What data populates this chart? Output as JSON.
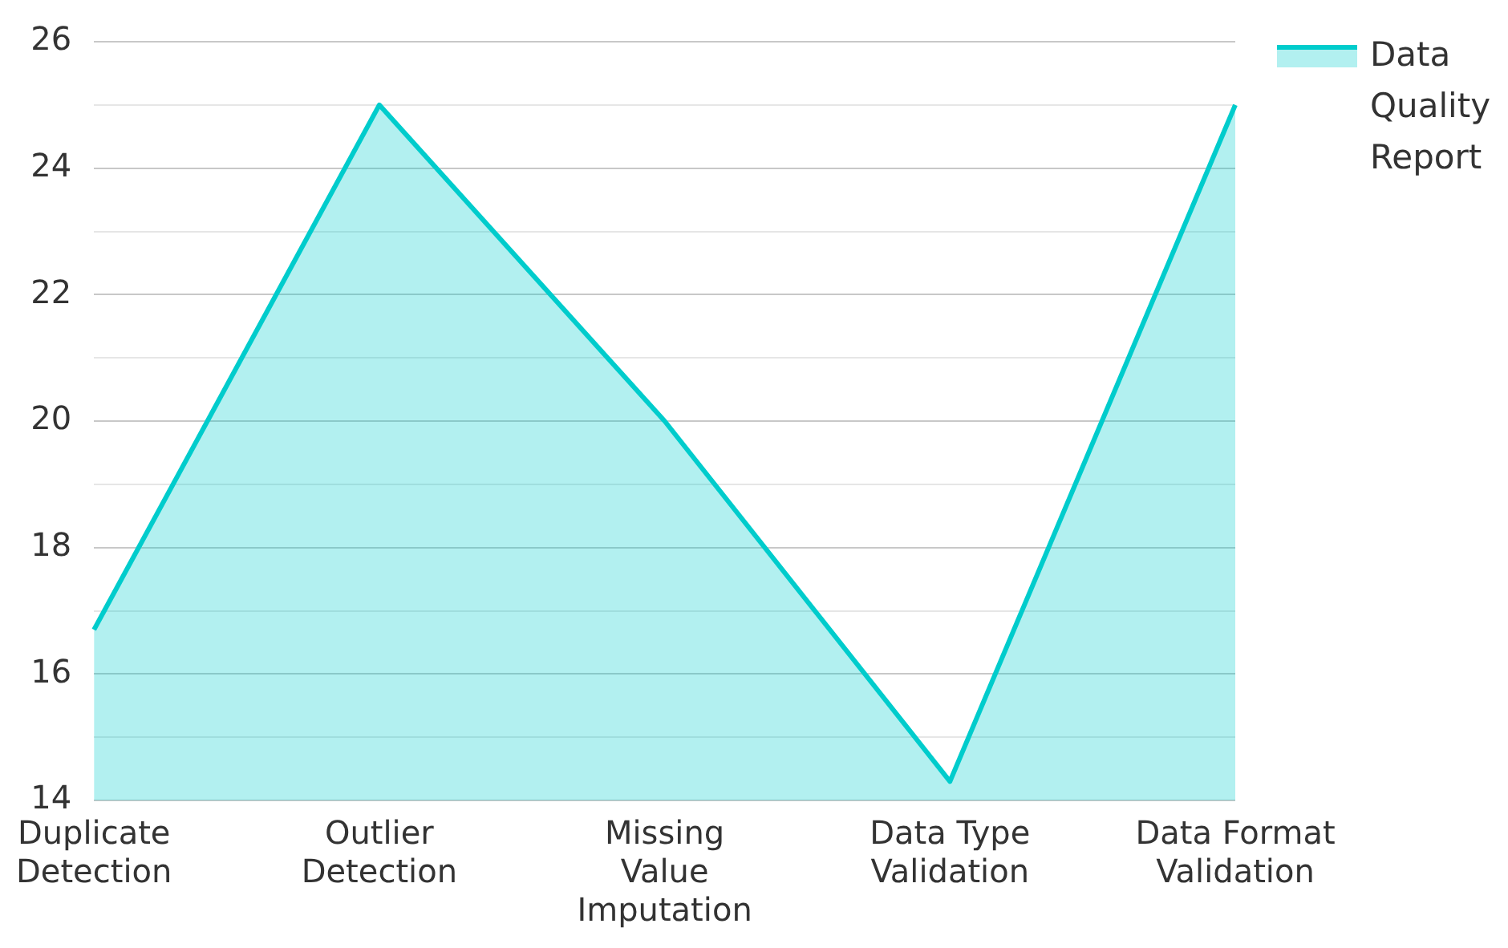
{
  "chart_data": {
    "type": "area",
    "categories": [
      "Duplicate Detection",
      "Outlier Detection",
      "Missing Value Imputation",
      "Data Type Validation",
      "Data Format Validation"
    ],
    "series": [
      {
        "name": "Data Quality Report",
        "color": "#00cccc",
        "values": [
          16.7,
          25,
          20,
          14.3,
          25
        ]
      }
    ],
    "ylim": [
      14,
      26
    ],
    "yticks": [
      14,
      {
        "value": 15,
        "label": null
      },
      16,
      {
        "value": 17,
        "label": null
      },
      18,
      {
        "value": 19,
        "label": null
      },
      20,
      {
        "value": 21,
        "label": null
      },
      22,
      {
        "value": 23,
        "label": null
      },
      24,
      {
        "value": 25,
        "label": null
      },
      26
    ],
    "grid": "y",
    "legend": "top right",
    "marker": "none",
    "line_style": "solid"
  }
}
